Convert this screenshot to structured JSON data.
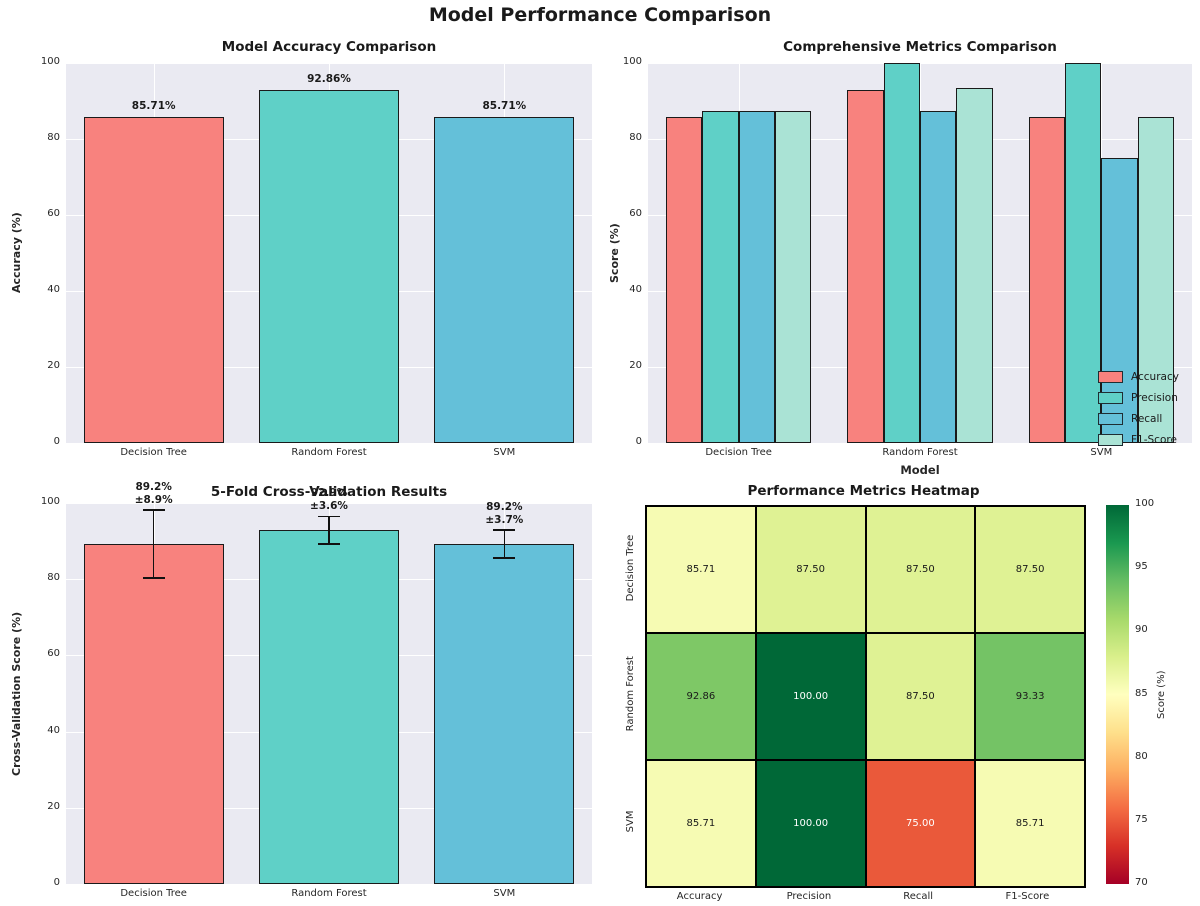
{
  "figure": {
    "title": "Model Performance Comparison"
  },
  "colors": {
    "axes_background": "#eaeaf2",
    "grid_line": "#ffffff",
    "bar_edge": "#1a1a1a",
    "text": "#262626",
    "accuracy": "#f8827e",
    "precision": "#5fd0c7",
    "recall": "#64c0d9",
    "f1_score": "#aae3d5",
    "heatmap_line": "#000000"
  },
  "models": [
    "Decision Tree",
    "Random Forest",
    "SVM"
  ],
  "metrics": [
    "Accuracy",
    "Precision",
    "Recall",
    "F1-Score"
  ],
  "chart_data": [
    {
      "type": "bar",
      "title": "Model Accuracy Comparison",
      "ylabel": "Accuracy (%)",
      "categories": [
        "Decision Tree",
        "Random Forest",
        "SVM"
      ],
      "values": [
        85.71,
        92.86,
        85.71
      ],
      "bar_labels": [
        "85.71%",
        "92.86%",
        "85.71%"
      ],
      "bar_colors": [
        "#f8827e",
        "#5fd0c7",
        "#64c0d9"
      ],
      "ylim": [
        0,
        100
      ],
      "yticks": [
        0,
        20,
        40,
        60,
        80,
        100
      ],
      "grid": "on"
    },
    {
      "type": "bar",
      "title": "Comprehensive Metrics Comparison",
      "xlabel": "Model",
      "ylabel": "Score (%)",
      "categories": [
        "Decision Tree",
        "Random Forest",
        "SVM"
      ],
      "series": [
        {
          "name": "Accuracy",
          "color": "#f8827e",
          "values": [
            85.71,
            92.86,
            85.71
          ]
        },
        {
          "name": "Precision",
          "color": "#5fd0c7",
          "values": [
            87.5,
            100.0,
            100.0
          ]
        },
        {
          "name": "Recall",
          "color": "#64c0d9",
          "values": [
            87.5,
            87.5,
            75.0
          ]
        },
        {
          "name": "F1-Score",
          "color": "#aae3d5",
          "values": [
            87.5,
            93.33,
            85.71
          ]
        }
      ],
      "ylim": [
        0,
        100
      ],
      "yticks": [
        0,
        20,
        40,
        60,
        80,
        100
      ],
      "legend": {
        "position": "lower right",
        "entries": [
          "Accuracy",
          "Precision",
          "Recall",
          "F1-Score"
        ]
      },
      "grid": "on"
    },
    {
      "type": "bar",
      "title": "5-Fold Cross-Validation Results",
      "ylabel": "Cross-Validation Score (%)",
      "categories": [
        "Decision Tree",
        "Random Forest",
        "SVM"
      ],
      "values": [
        89.2,
        92.9,
        89.2
      ],
      "errors": [
        8.9,
        3.6,
        3.7
      ],
      "bar_labels": [
        "89.2%\n±8.9%",
        "92.9%\n±3.6%",
        "89.2%\n±3.7%"
      ],
      "bar_colors": [
        "#f8827e",
        "#5fd0c7",
        "#64c0d9"
      ],
      "ylim": [
        0,
        100
      ],
      "yticks": [
        0,
        20,
        40,
        60,
        80,
        100
      ],
      "grid": "on"
    },
    {
      "type": "heatmap",
      "title": "Performance Metrics Heatmap",
      "rows": [
        "Decision Tree",
        "Random Forest",
        "SVM"
      ],
      "cols": [
        "Accuracy",
        "Precision",
        "Recall",
        "F1-Score"
      ],
      "values": [
        [
          85.71,
          87.5,
          87.5,
          87.5
        ],
        [
          92.86,
          100.0,
          87.5,
          93.33
        ],
        [
          85.71,
          100.0,
          75.0,
          85.71
        ]
      ],
      "value_labels": [
        [
          "85.71",
          "87.50",
          "87.50",
          "87.50"
        ],
        [
          "92.86",
          "100.00",
          "87.50",
          "93.33"
        ],
        [
          "85.71",
          "100.00",
          "75.00",
          "85.71"
        ]
      ],
      "vmin": 70,
      "vmax": 100,
      "colormap": "RdYlGn",
      "colormap_anchors": [
        "#a50026",
        "#d73027",
        "#f46d43",
        "#fdae61",
        "#fee08b",
        "#ffffbf",
        "#d9ef8b",
        "#a6d96a",
        "#66bd63",
        "#1a9850",
        "#006837"
      ],
      "colorbar": {
        "label": "Score (%)",
        "ticks": [
          70,
          75,
          80,
          85,
          90,
          95,
          100
        ]
      }
    }
  ]
}
